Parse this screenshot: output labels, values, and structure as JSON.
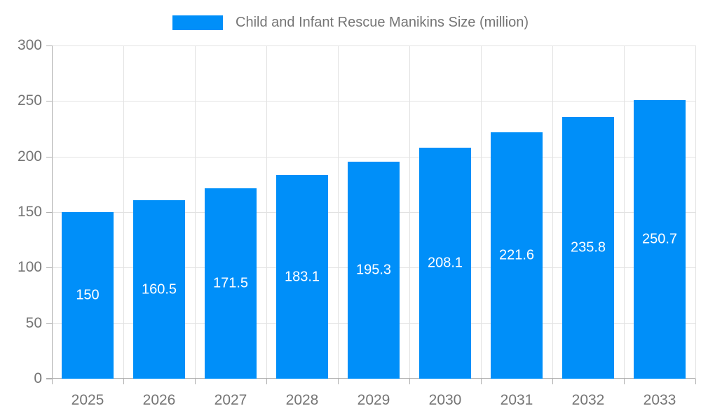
{
  "chart_data": {
    "type": "bar",
    "title": "",
    "legend_label": "Child and Infant Rescue Manikins Size (million)",
    "legend_position": "top-center",
    "categories": [
      "2025",
      "2026",
      "2027",
      "2028",
      "2029",
      "2030",
      "2031",
      "2032",
      "2033"
    ],
    "values": [
      150,
      160.5,
      171.5,
      183.1,
      195.3,
      208.1,
      221.6,
      235.8,
      250.7
    ],
    "value_labels": [
      "150",
      "160.5",
      "171.5",
      "183.1",
      "195.3",
      "208.1",
      "221.6",
      "235.8",
      "250.7"
    ],
    "xlabel": "",
    "ylabel": "",
    "ylim": [
      0,
      300
    ],
    "y_ticks": [
      0,
      50,
      100,
      150,
      200,
      250,
      300
    ],
    "grid": true,
    "colors": {
      "bar": "#008ff9",
      "bar_label": "#ffffff",
      "axis_label": "#757575",
      "legend_text": "#757575",
      "gridline": "#e2e2e2",
      "axis_line": "#b0b0b0"
    }
  }
}
